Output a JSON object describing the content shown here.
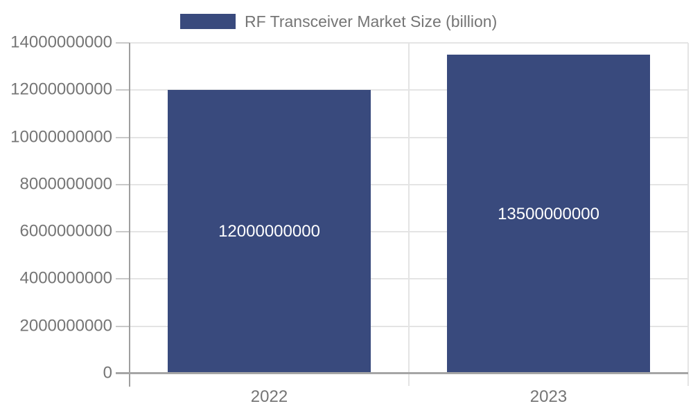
{
  "legend": {
    "label": "RF Transceiver Market Size (billion)"
  },
  "chart_data": {
    "type": "bar",
    "title": "RF Transceiver Market Size (billion)",
    "categories": [
      "2022",
      "2023"
    ],
    "series": [
      {
        "name": "RF Transceiver Market Size (billion)",
        "values": [
          12000000000,
          13500000000
        ]
      }
    ],
    "bar_value_labels": [
      "12000000000",
      "13500000000"
    ],
    "bar_value_label_position": "inside-center",
    "xlabel": "",
    "ylabel": "",
    "ylim": [
      0,
      14000000000
    ],
    "ytick_step": 2000000000,
    "yticks": [
      0,
      2000000000,
      4000000000,
      6000000000,
      8000000000,
      10000000000,
      12000000000,
      14000000000
    ],
    "ytick_labels": [
      "0",
      "2000000000",
      "4000000000",
      "6000000000",
      "8000000000",
      "10000000000",
      "12000000000",
      "14000000000"
    ],
    "grid": true,
    "legend_position": "top",
    "colors": {
      "bar": "#394a7d",
      "axis_text": "#757575",
      "legend_text": "#757575",
      "gridline": "#e4e4e4",
      "tick": "#c9c9c9",
      "y_axis_line": "#9e9e9e",
      "x_axis_line": "#a5a5a5",
      "bar_label_text": "#ffffff",
      "background": "#ffffff"
    }
  }
}
